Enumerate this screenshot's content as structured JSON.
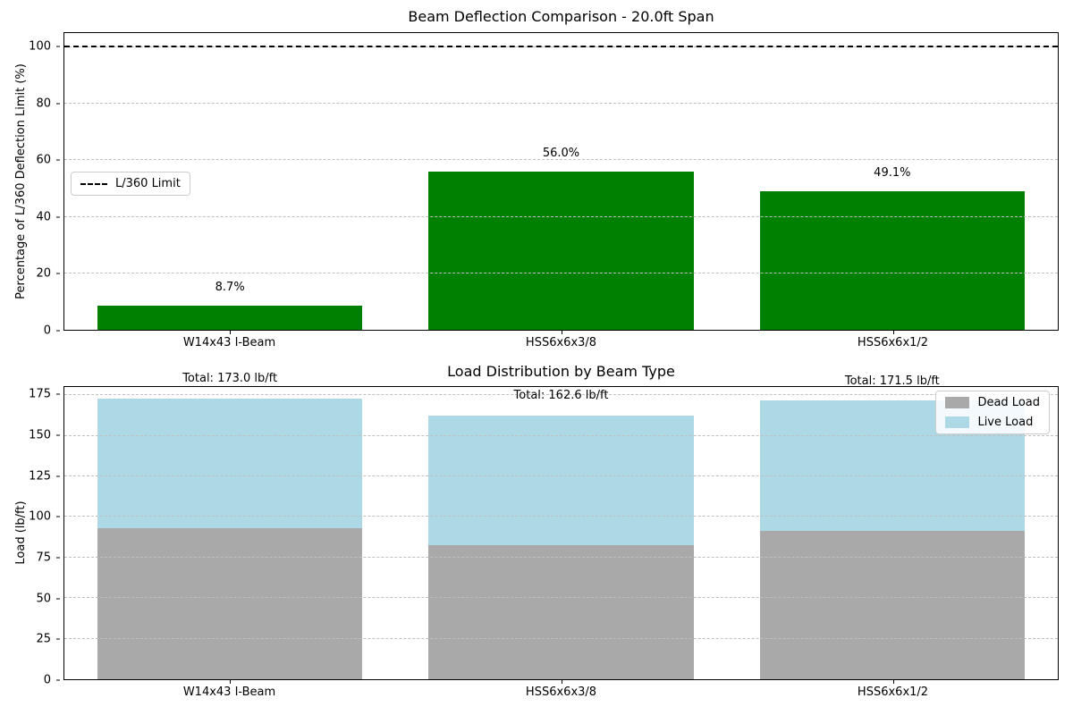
{
  "chart_data": [
    {
      "type": "bar",
      "title": "Beam Deflection Comparison - 20.0ft Span",
      "categories": [
        "W14x43 I-Beam",
        "HSS6x6x3/8",
        "HSS6x6x1/2"
      ],
      "values": [
        8.7,
        56.0,
        49.1
      ],
      "bar_labels": [
        "8.7%",
        "56.0%",
        "49.1%"
      ],
      "bar_color": "#008000",
      "xlabel": "",
      "ylabel": "Percentage of L/360 Deflection Limit (%)",
      "yticks": [
        0,
        20,
        40,
        60,
        80,
        100
      ],
      "ylim": [
        0,
        105
      ],
      "grid": "horizontal-dashed",
      "reference_line": {
        "value": 100,
        "style": "dashed",
        "color": "#000000"
      },
      "legend": {
        "position": "center-left",
        "entries": [
          {
            "label": "L/360 Limit",
            "marker": "dashed-line",
            "color": "#000000"
          }
        ]
      }
    },
    {
      "type": "stacked-bar",
      "title": "Load Distribution by Beam Type",
      "categories": [
        "W14x43 I-Beam",
        "HSS6x6x3/8",
        "HSS6x6x1/2"
      ],
      "series": [
        {
          "name": "Dead Load",
          "values": [
            93.0,
            82.6,
            91.5
          ],
          "color": "#a9a9a9"
        },
        {
          "name": "Live Load",
          "values": [
            80.0,
            80.0,
            80.0
          ],
          "color": "#add8e6"
        }
      ],
      "totals": [
        173.0,
        162.6,
        171.5
      ],
      "total_labels": [
        "Total: 173.0 lb/ft",
        "Total: 162.6 lb/ft",
        "Total: 171.5 lb/ft"
      ],
      "xlabel": "",
      "ylabel": "Load (lb/ft)",
      "yticks": [
        0,
        25,
        50,
        75,
        100,
        125,
        150,
        175
      ],
      "ylim": [
        0,
        180
      ],
      "grid": "horizontal-dashed",
      "legend": {
        "position": "top-right",
        "entries": [
          {
            "label": "Dead Load",
            "marker": "patch",
            "color": "#a9a9a9"
          },
          {
            "label": "Live Load",
            "marker": "patch",
            "color": "#add8e6"
          }
        ]
      }
    }
  ]
}
